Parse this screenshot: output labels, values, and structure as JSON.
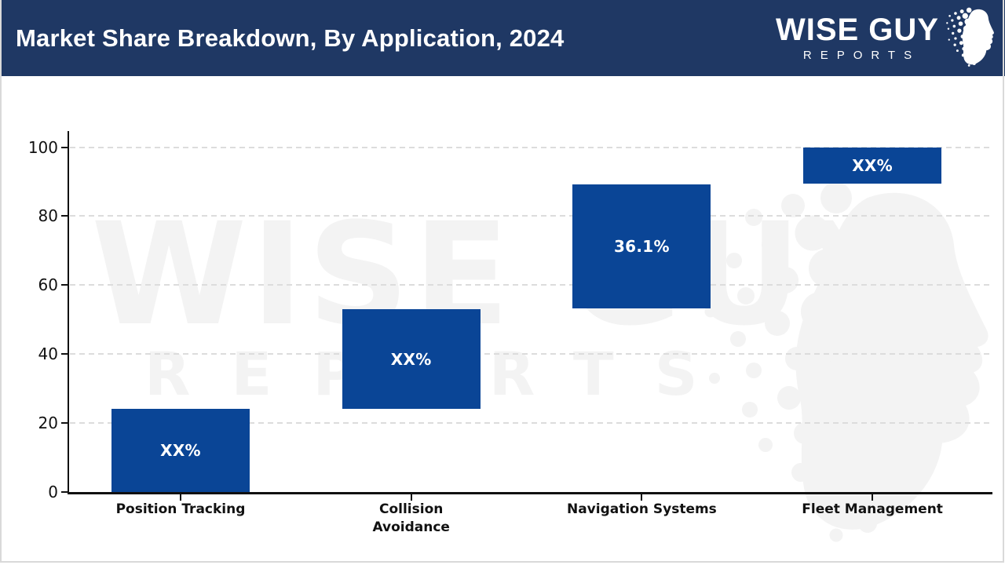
{
  "header": {
    "title": "Market Share Breakdown, By Application, 2024",
    "logo": {
      "name": "WISE GUY",
      "subname": "REPORTS"
    }
  },
  "watermark": {
    "line1": "WISE GUY",
    "line2": "REPORTS"
  },
  "colors": {
    "header_bg": "#1f3864",
    "bar": "#0a4596",
    "grid": "#dcdcdc",
    "axis": "#111111",
    "bar_label_text": "#ffffff",
    "watermark": "#f3f3f3"
  },
  "chart_data": {
    "type": "bar",
    "subtype": "floating-segment-waterfall",
    "title": "Market Share Breakdown, By Application, 2024",
    "categories": [
      "Position Tracking",
      "Collision\nAvoidance",
      "Navigation Systems",
      "Fleet Management"
    ],
    "bars": [
      {
        "category": "Position Tracking",
        "start": 0,
        "end": 24.1,
        "label": "XX%"
      },
      {
        "category": "Collision Avoidance",
        "start": 24.1,
        "end": 53.0,
        "label": "XX%"
      },
      {
        "category": "Navigation Systems",
        "start": 53.2,
        "end": 89.3,
        "label": "36.1%",
        "value": 36.1
      },
      {
        "category": "Fleet Management",
        "start": 89.5,
        "end": 100,
        "label": "XX%"
      }
    ],
    "xlabel": "",
    "ylabel": "",
    "yticks": [
      0,
      20,
      40,
      60,
      80,
      100
    ],
    "ylim": [
      0,
      104
    ],
    "grid": "horizontal-dashed",
    "legend": "none"
  }
}
